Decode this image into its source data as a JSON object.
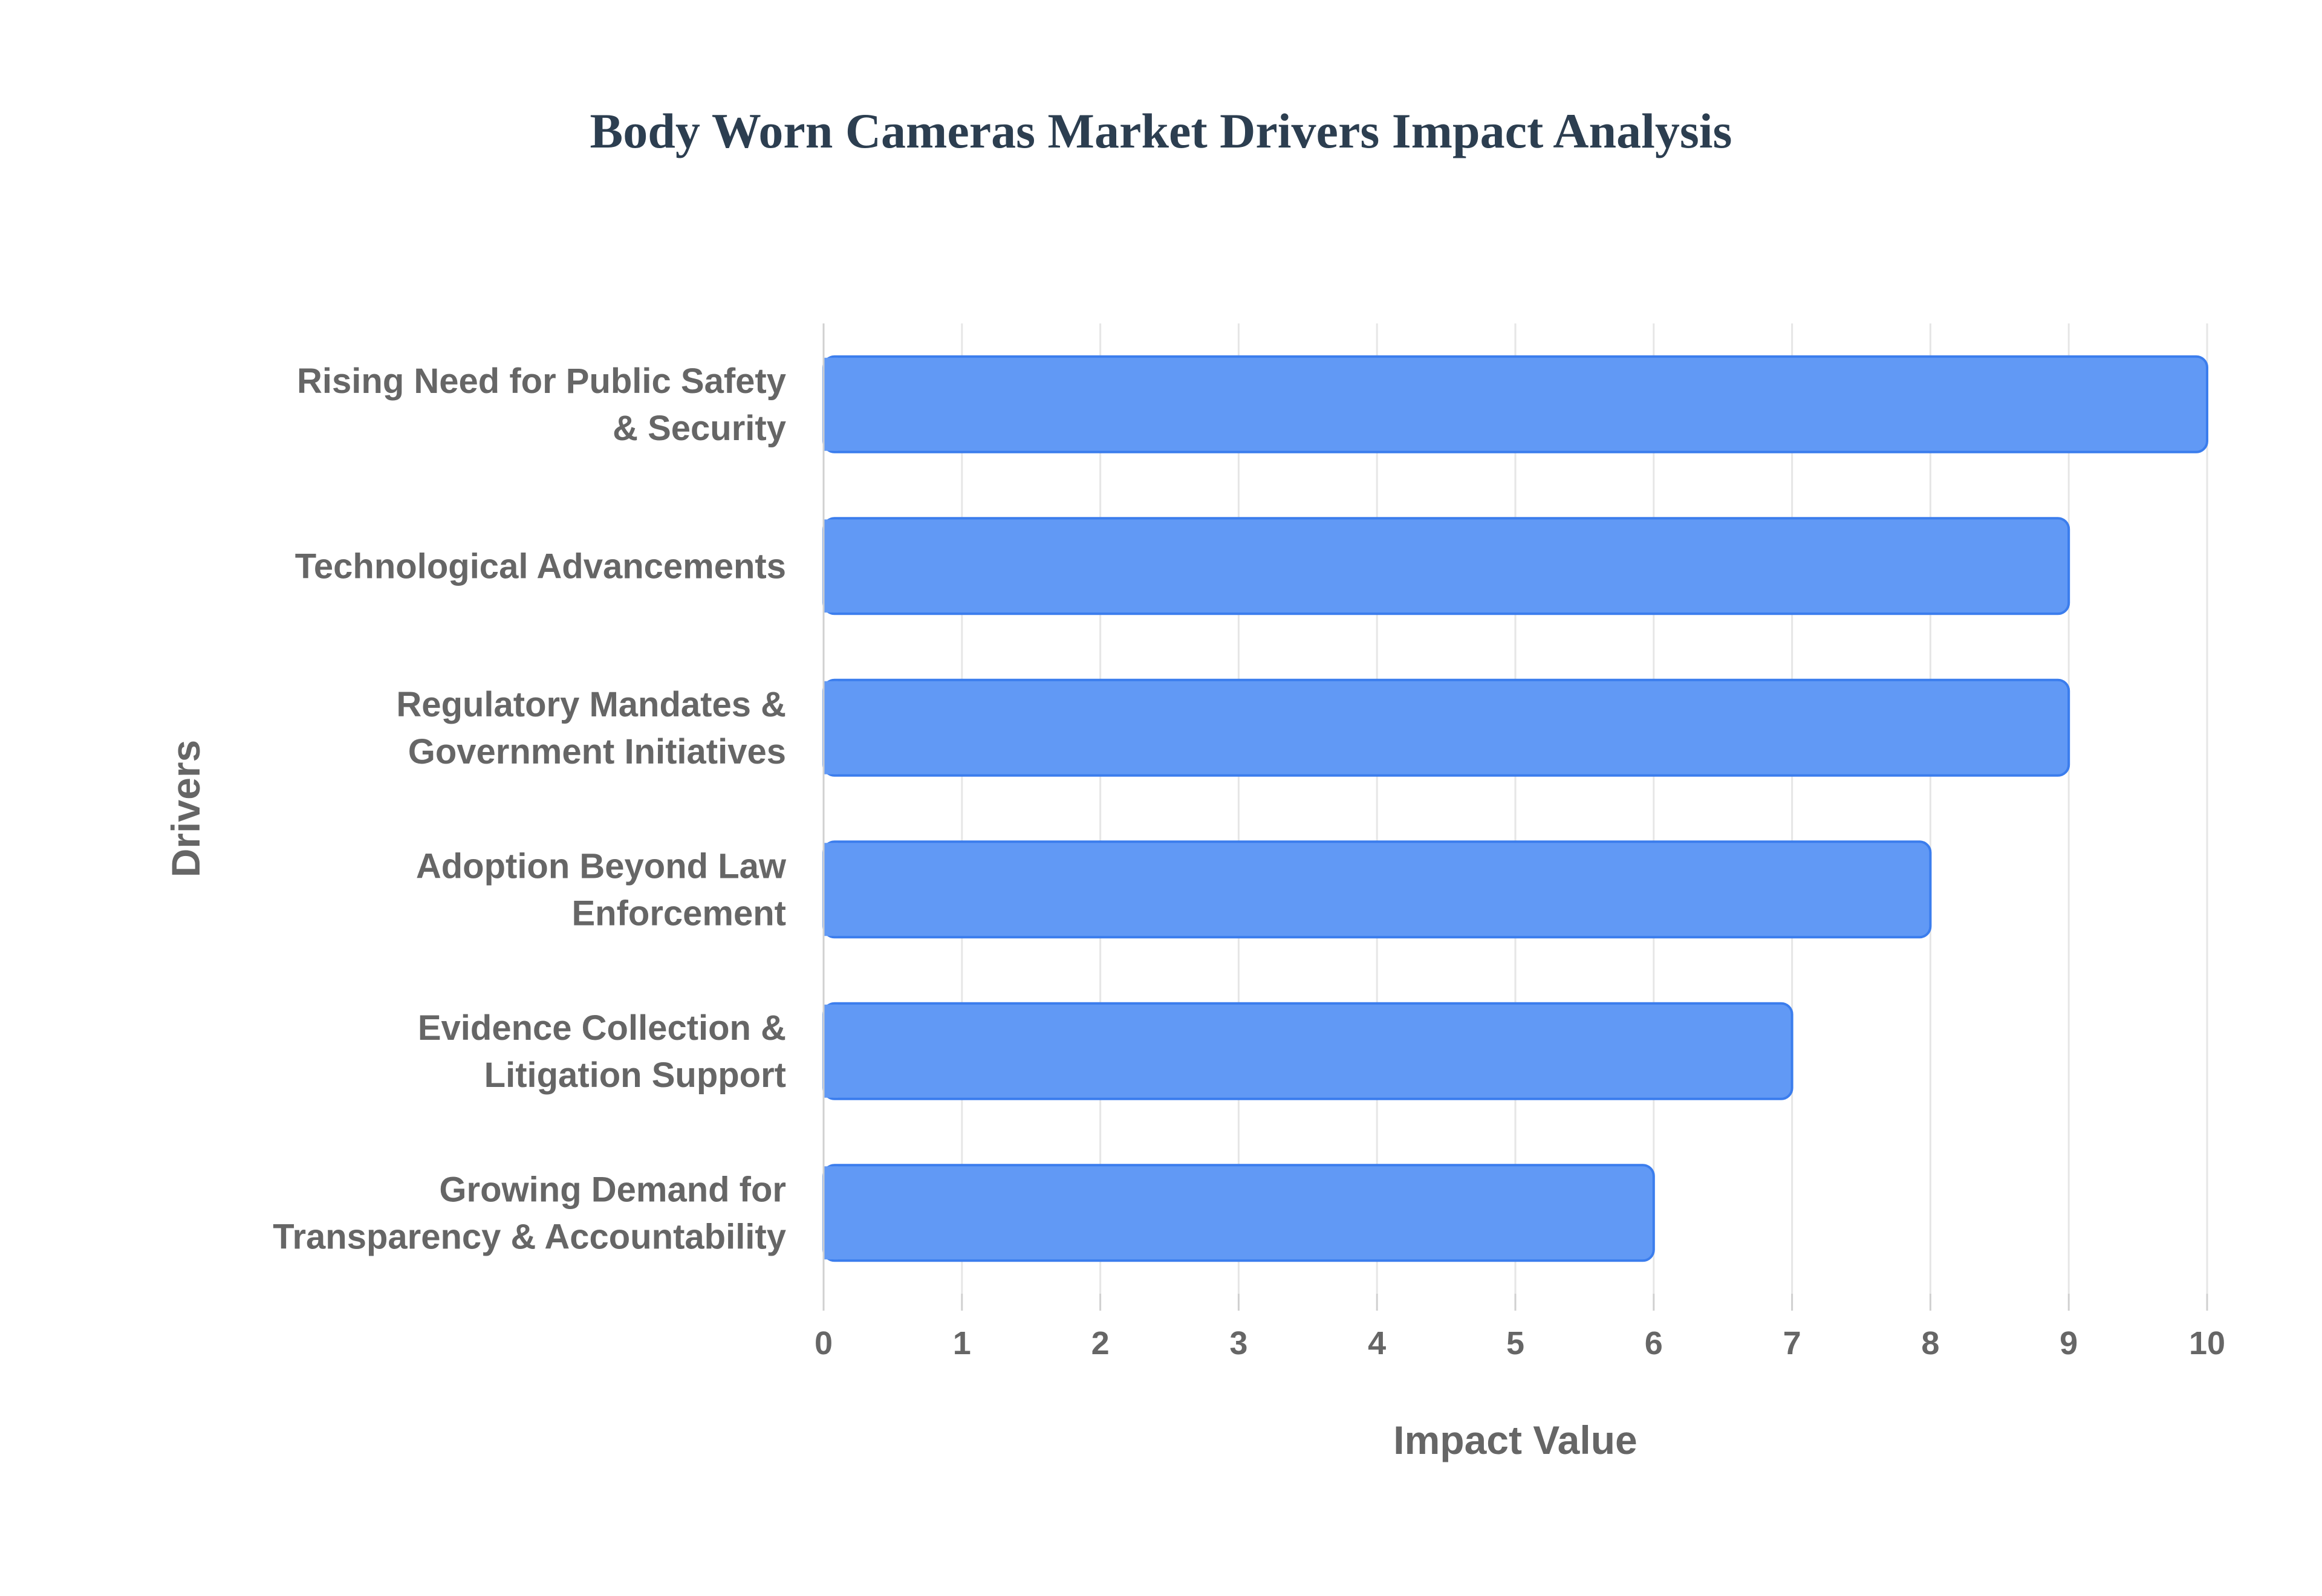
{
  "chart_data": {
    "type": "bar",
    "orientation": "horizontal",
    "title": "Body Worn Cameras Market Drivers Impact Analysis",
    "xlabel": "Impact Value",
    "ylabel": "Drivers",
    "xlim": [
      0,
      10
    ],
    "x_ticks": [
      "0",
      "1",
      "2",
      "3",
      "4",
      "5",
      "6",
      "7",
      "8",
      "9",
      "10"
    ],
    "categories": [
      [
        "Rising Need for Public Safety",
        "& Security"
      ],
      [
        "Technological Advancements"
      ],
      [
        "Regulatory Mandates &",
        "Government Initiatives"
      ],
      [
        "Adoption Beyond Law",
        "Enforcement"
      ],
      [
        "Evidence Collection &",
        "Litigation Support"
      ],
      [
        "Growing Demand for",
        "Transparency & Accountability"
      ]
    ],
    "values": [
      10,
      9,
      9,
      8,
      7,
      6
    ],
    "grid": true,
    "bar_color": "#6199f5",
    "bar_border_color": "#3b7ded",
    "text_color": "#666666",
    "title_color": "#2c3e50"
  }
}
